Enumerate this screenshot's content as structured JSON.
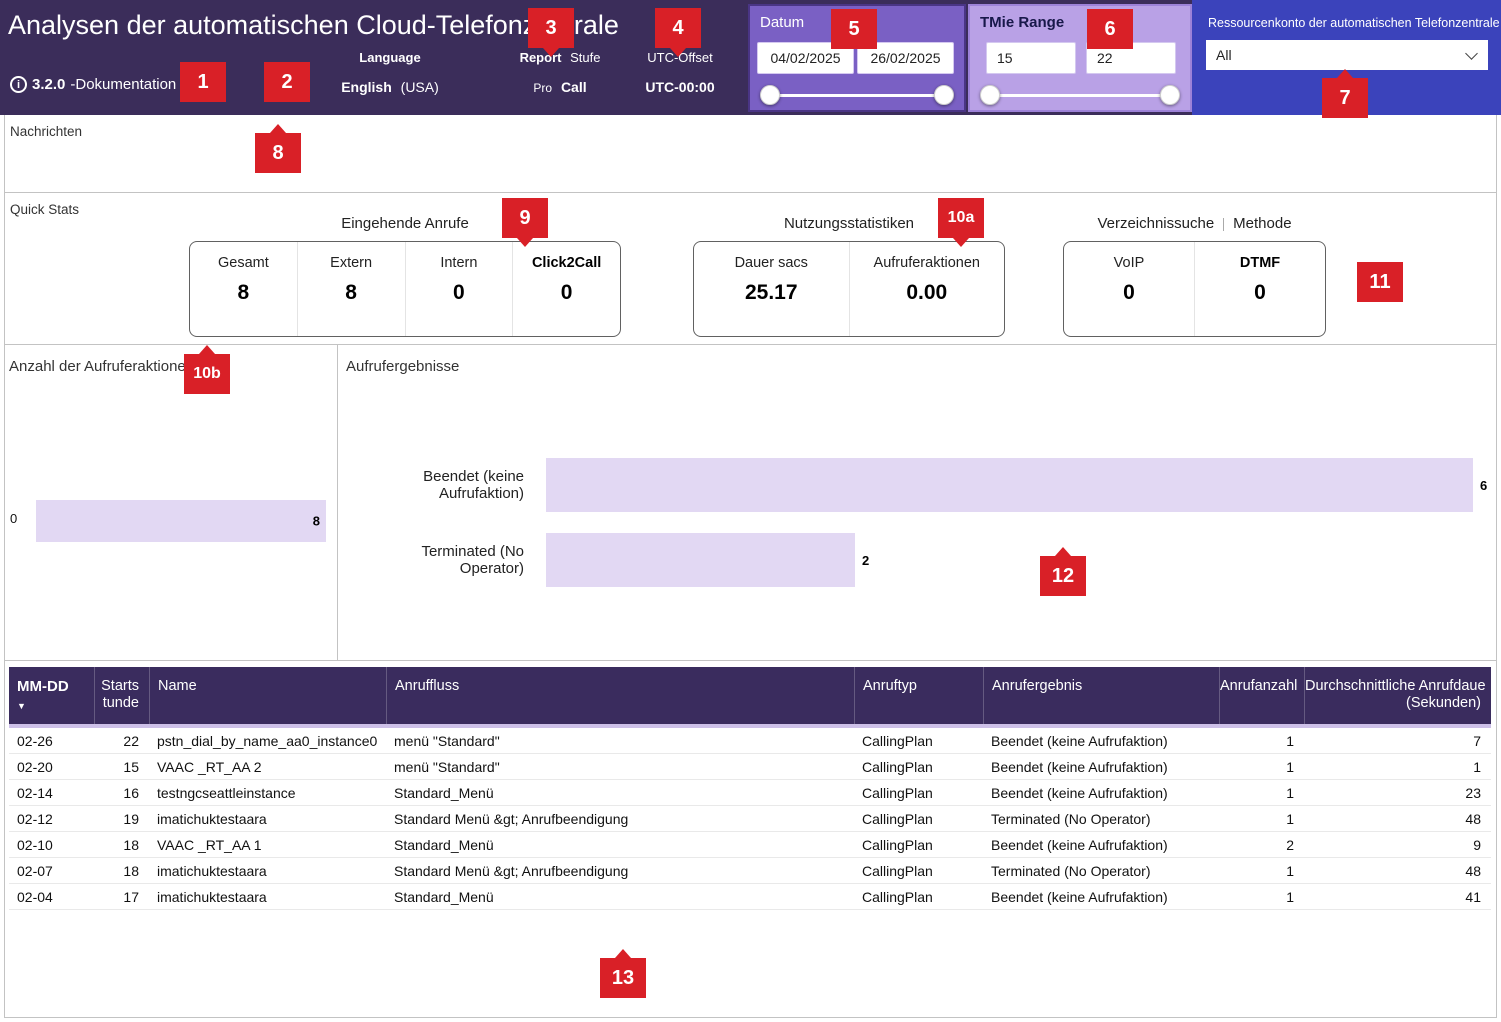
{
  "header": {
    "title": "Analysen der automatischen Cloud-Telefonzentrale",
    "version": "3.2.0",
    "version_suffix": "-Dokumentation",
    "language": {
      "label": "Language",
      "value_bold": "English",
      "value_rest": "(USA)"
    },
    "report": {
      "label_bold": "Report",
      "label_rest": "Stufe",
      "value_prefix": "Pro",
      "value_bold": "Call"
    },
    "utc": {
      "label": "UTC-Offset",
      "value": "UTC-00:00"
    },
    "date_filter": {
      "label": "Datum",
      "from": "04/02/2025",
      "to": "26/02/2025"
    },
    "time_filter": {
      "label": "TMie Range",
      "from": "15",
      "to": "22"
    },
    "resource_filter": {
      "label": "Ressourcenkonto der automatischen Telefonzentrale",
      "value": "All"
    }
  },
  "messages": {
    "label": "Nachrichten"
  },
  "quick_stats": {
    "label": "Quick Stats",
    "cards": [
      {
        "title": "Eingehende Anrufe",
        "metrics": [
          {
            "label": "Gesamt",
            "value": "8"
          },
          {
            "label": "Extern",
            "value": "8"
          },
          {
            "label": "Intern",
            "value": "0"
          },
          {
            "label": "Click2Call",
            "value": "0"
          }
        ]
      },
      {
        "title": "Nutzungsstatistiken",
        "metrics": [
          {
            "label": "Dauer sacs",
            "value": "25.17"
          },
          {
            "label": "Aufruferaktionen",
            "value": "0.00"
          }
        ]
      },
      {
        "title": "Verzeichnissuche",
        "title2": "Methode",
        "metrics": [
          {
            "label": "VoIP",
            "value": "0"
          },
          {
            "label": "DTMF",
            "value": "0"
          }
        ]
      }
    ]
  },
  "chart_data": [
    {
      "type": "bar",
      "orientation": "horizontal",
      "title": "Anzahl der Aufruferaktionen",
      "categories": [
        "0"
      ],
      "values": [
        8
      ],
      "xlim": [
        0,
        8
      ],
      "grid": false,
      "legend": false
    },
    {
      "type": "bar",
      "orientation": "horizontal",
      "title": "Aufrufergebnisse",
      "categories": [
        "Beendet (keine Aufrufaktion)",
        "Terminated (No Operator)"
      ],
      "values": [
        6,
        2
      ],
      "xlim": [
        0,
        6
      ],
      "grid": false,
      "legend": false
    }
  ],
  "table": {
    "columns": [
      {
        "lines": [
          "MM-DD"
        ],
        "align": "left",
        "sorted": "desc"
      },
      {
        "lines": [
          "Starts",
          "tunde"
        ],
        "align": "right"
      },
      {
        "lines": [
          "Name"
        ],
        "align": "left"
      },
      {
        "lines": [
          "Anruffluss"
        ],
        "align": "left"
      },
      {
        "lines": [
          "Anruftyp"
        ],
        "align": "left"
      },
      {
        "lines": [
          "Anrufergebnis"
        ],
        "align": "left"
      },
      {
        "lines": [
          "Anrufanzahl"
        ],
        "align": "right"
      },
      {
        "lines": [
          "Durchschnittliche Anrufdaue",
          "(Sekunden)"
        ],
        "align": "right"
      }
    ],
    "rows": [
      [
        "02-26",
        "22",
        "pstn_dial_by_name_aa0_instance0",
        "menü \"Standard\"",
        "CallingPlan",
        "Beendet (keine Aufrufaktion)",
        "1",
        "7"
      ],
      [
        "02-20",
        "15",
        "VAAC _RT_AA 2",
        "menü \"Standard\"",
        "CallingPlan",
        "Beendet (keine Aufrufaktion)",
        "1",
        "1"
      ],
      [
        "02-14",
        "16",
        "testngcseattleinstance",
        "Standard_Menü",
        "CallingPlan",
        "Beendet (keine Aufrufaktion)",
        "1",
        "23"
      ],
      [
        "02-12",
        "19",
        "imatichuktestaara",
        "Standard Menü &gt; Anrufbeendigung",
        "CallingPlan",
        "Terminated (No Operator)",
        "1",
        "48"
      ],
      [
        "02-10",
        "18",
        "VAAC _RT_AA 1",
        "Standard_Menü",
        "CallingPlan",
        "Beendet (keine Aufrufaktion)",
        "2",
        "9"
      ],
      [
        "02-07",
        "18",
        "imatichuktestaara",
        "Standard Menü &gt; Anrufbeendigung",
        "CallingPlan",
        "Terminated (No Operator)",
        "1",
        "48"
      ],
      [
        "02-04",
        "17",
        "imatichuktestaara",
        "Standard_Menü",
        "CallingPlan",
        "Beendet (keine Aufrufaktion)",
        "1",
        "41"
      ]
    ]
  },
  "icons": {
    "info": "i",
    "sort_desc": "▼"
  },
  "markers": {
    "m1": "1",
    "m2": "2",
    "m3": "3",
    "m4": "4",
    "m5": "5",
    "m6": "6",
    "m7": "7",
    "m8": "8",
    "m9": "9",
    "m10a": "10a",
    "m10b": "10b",
    "m11": "11",
    "m12": "12",
    "m13": "13"
  }
}
